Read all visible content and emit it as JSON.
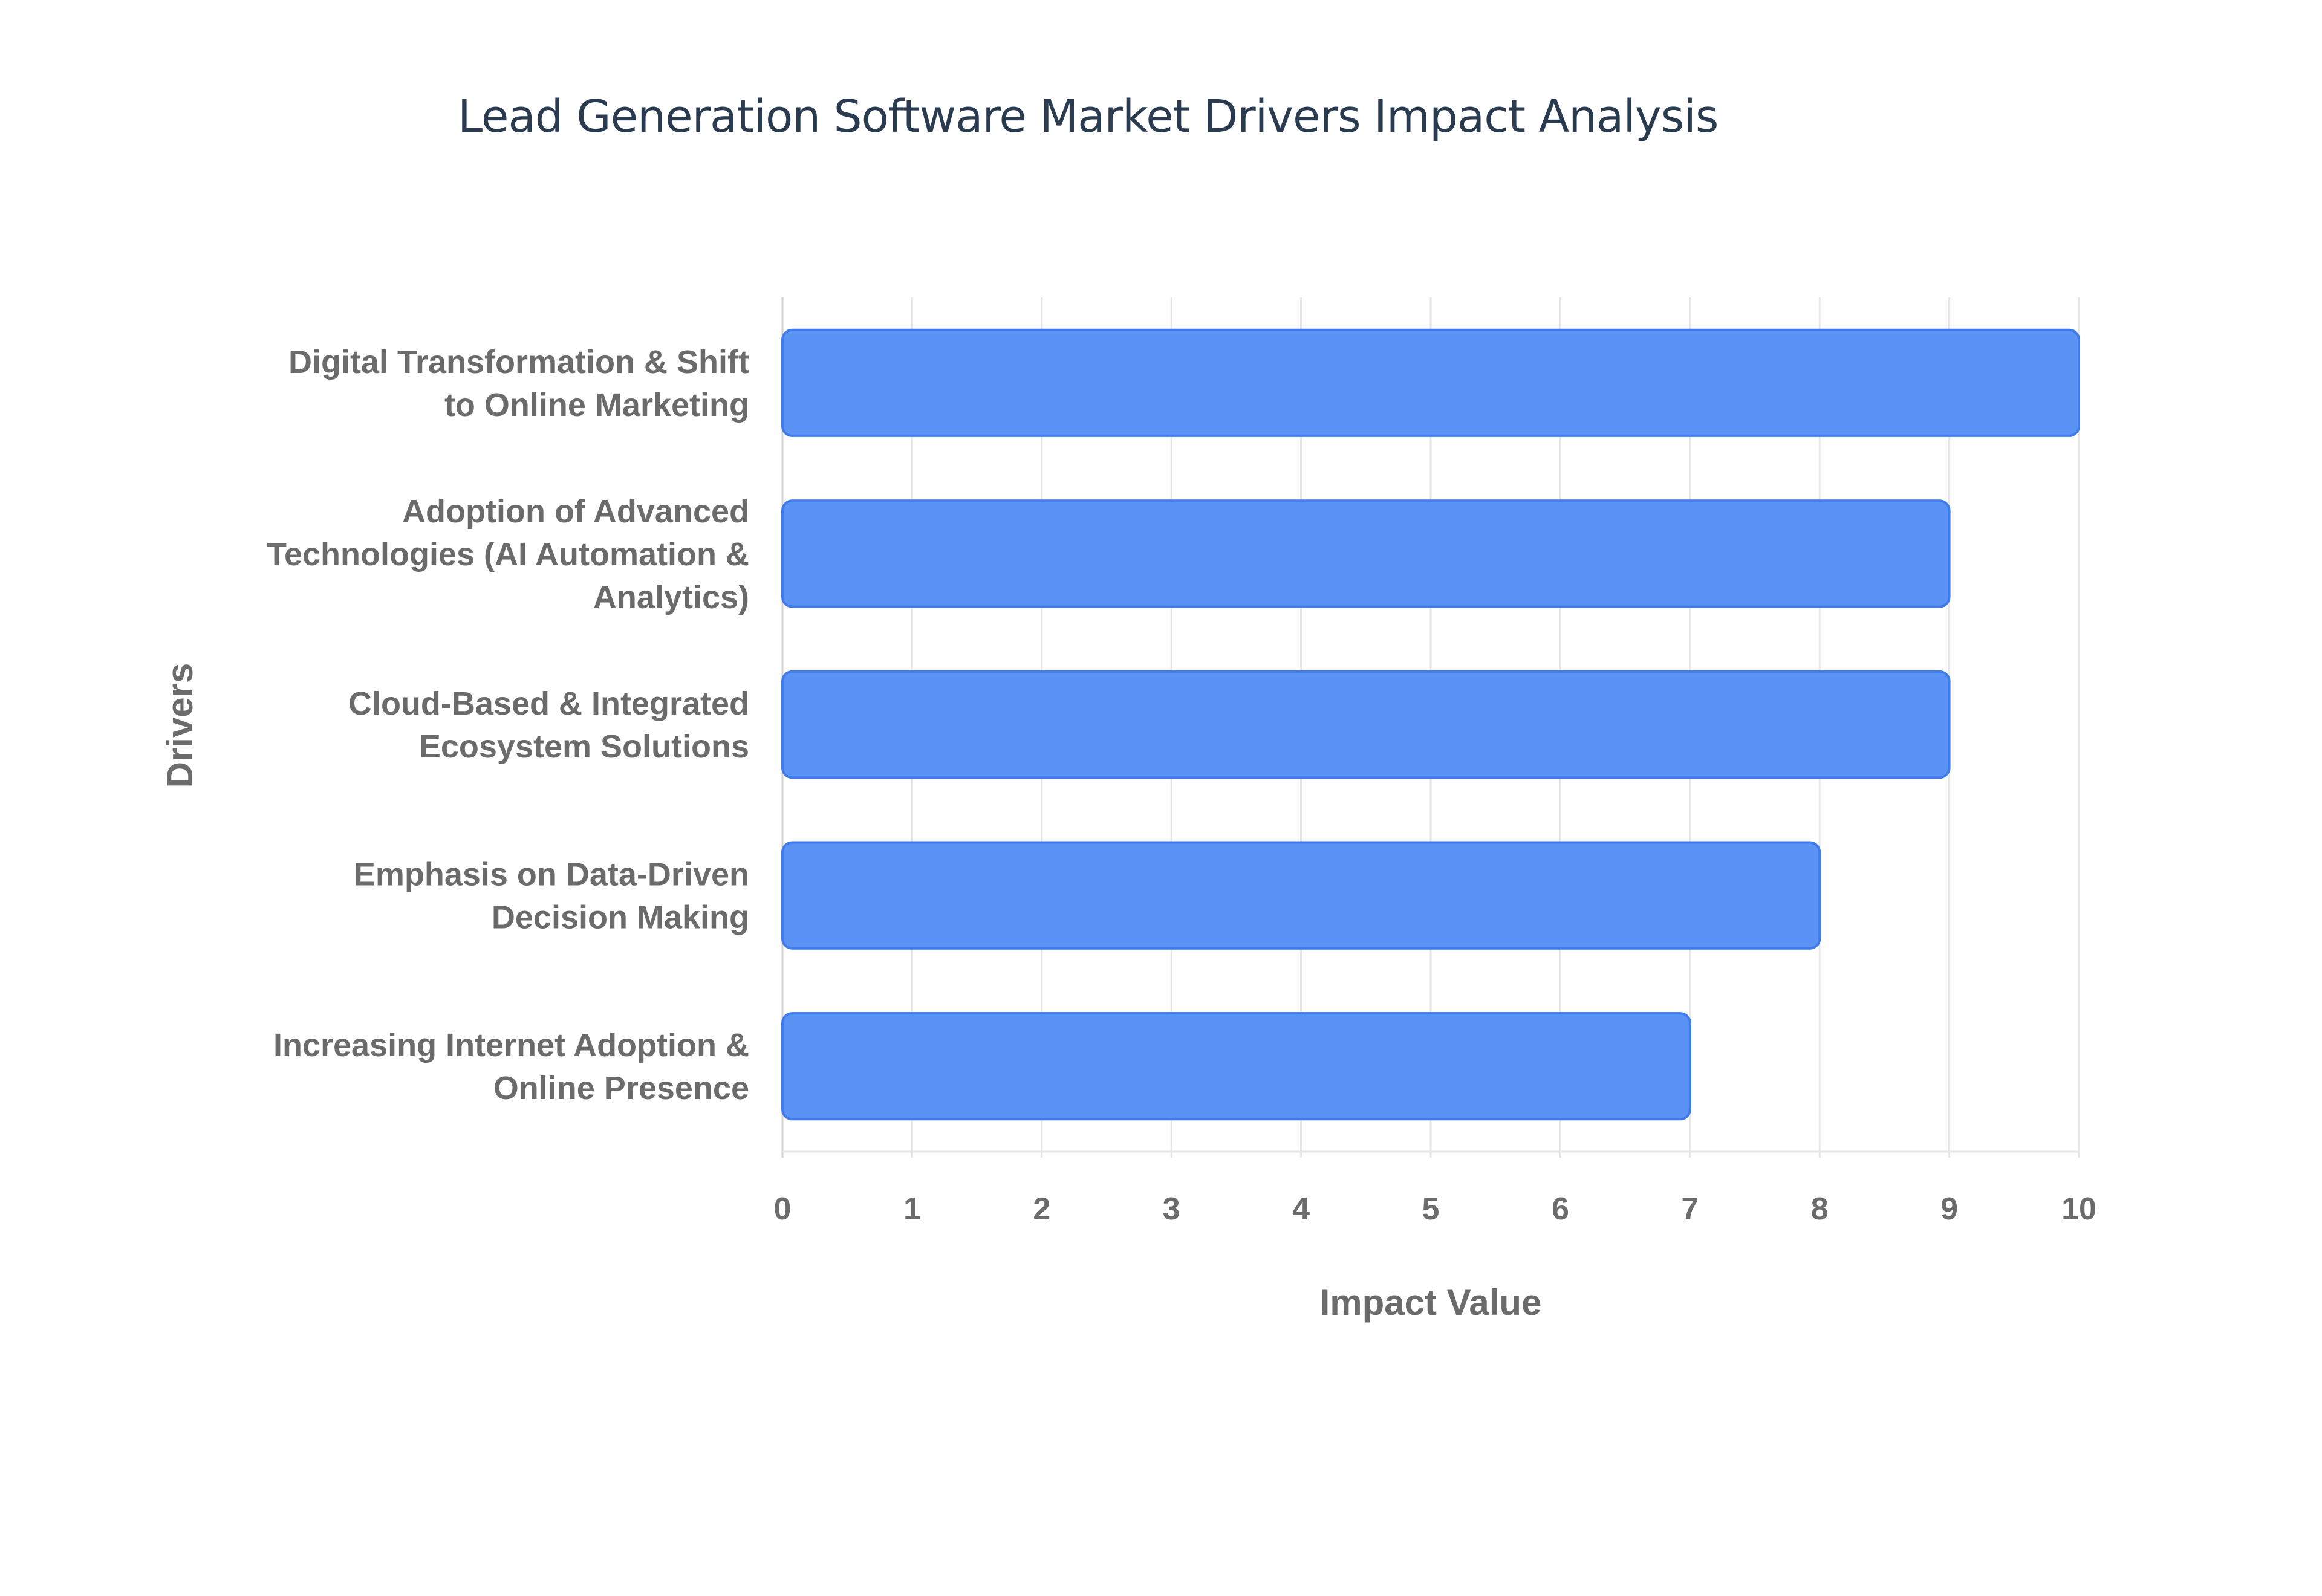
{
  "chart_data": {
    "type": "bar",
    "orientation": "horizontal",
    "title": "Lead Generation Software Market Drivers Impact Analysis",
    "xlabel": "Impact Value",
    "ylabel": "Drivers",
    "categories": [
      [
        "Digital Transformation & Shift",
        "to Online Marketing"
      ],
      [
        "Adoption of Advanced",
        "Technologies (AI Automation &",
        "Analytics)"
      ],
      [
        "Cloud-Based & Integrated",
        "Ecosystem Solutions"
      ],
      [
        "Emphasis on Data-Driven",
        "Decision Making"
      ],
      [
        "Increasing Internet Adoption &",
        "Online Presence"
      ]
    ],
    "values": [
      10,
      9,
      9,
      8,
      7
    ],
    "xlim": [
      0,
      10
    ],
    "xticks": [
      "0",
      "1",
      "2",
      "3",
      "4",
      "5",
      "6",
      "7",
      "8",
      "9",
      "10"
    ],
    "grid": true,
    "bar_color": "#5b93f5",
    "bar_edge_color": "#3f7bea"
  }
}
